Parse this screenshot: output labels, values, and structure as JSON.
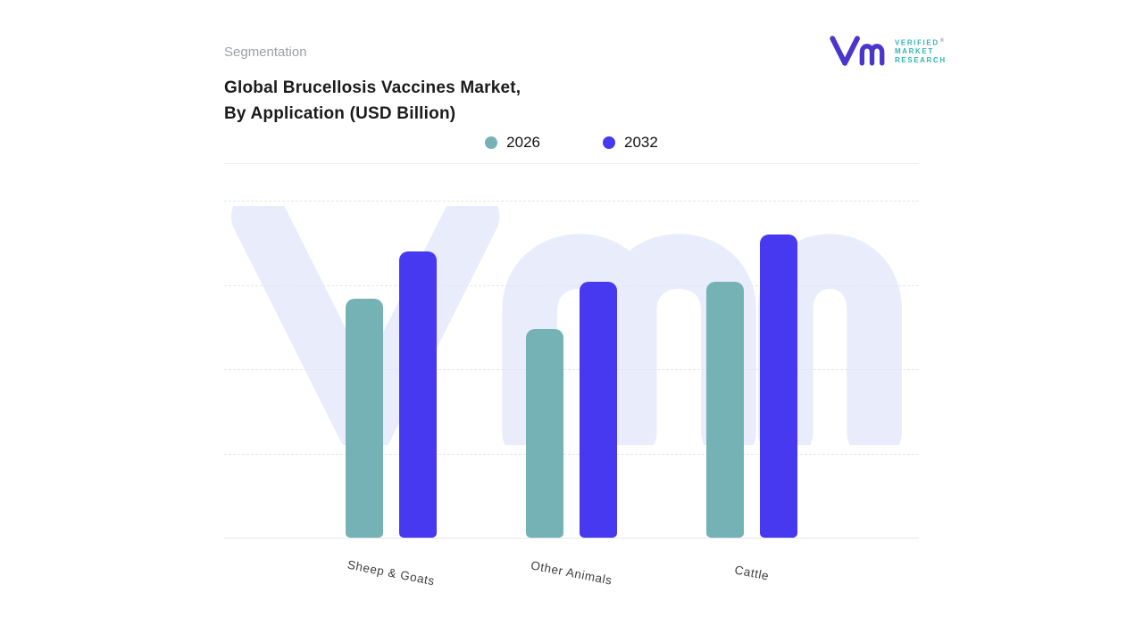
{
  "header": {
    "segmentation_label": "Segmentation",
    "title_line1": "Global Brucellosis Vaccines Market,",
    "title_line2": "By Application (USD Billion)",
    "logo": {
      "verified": "VERIFIED",
      "market": "MARKET",
      "research": "RESEARCH",
      "registered": "®"
    }
  },
  "chart_data": {
    "type": "bar",
    "title": "Global Brucellosis Vaccines Market, By Application (USD Billion)",
    "categories": [
      "Sheep & Goats",
      "Other Animals",
      "Cattle"
    ],
    "series": [
      {
        "name": "2026",
        "color": "#74b2b6",
        "values": [
          71,
          62,
          76
        ]
      },
      {
        "name": "2032",
        "color": "#4639f0",
        "values": [
          85,
          76,
          90
        ]
      }
    ],
    "xlabel": "",
    "ylabel": "",
    "ylim": [
      0,
      100
    ],
    "y_axis_labels_visible": false,
    "grid": "horizontal-dashed",
    "legend_position": "top-center",
    "value_labels": false,
    "note": "No numeric y-axis shown; values are relative units estimated from bar heights (plot top = 100)."
  },
  "colors": {
    "series_2026": "#74b2b6",
    "series_2032": "#4639f0",
    "watermark": "#e9ecfb",
    "gridline": "#e3e5ec",
    "divider": "#ededed",
    "title_text": "#1b1b1b",
    "segmentation_text": "#9aa0a6",
    "logo_text_teal": "#2fb5b5",
    "logo_mark_purple": "#4a35cf",
    "axis_label_text": "#3f3f3f"
  }
}
